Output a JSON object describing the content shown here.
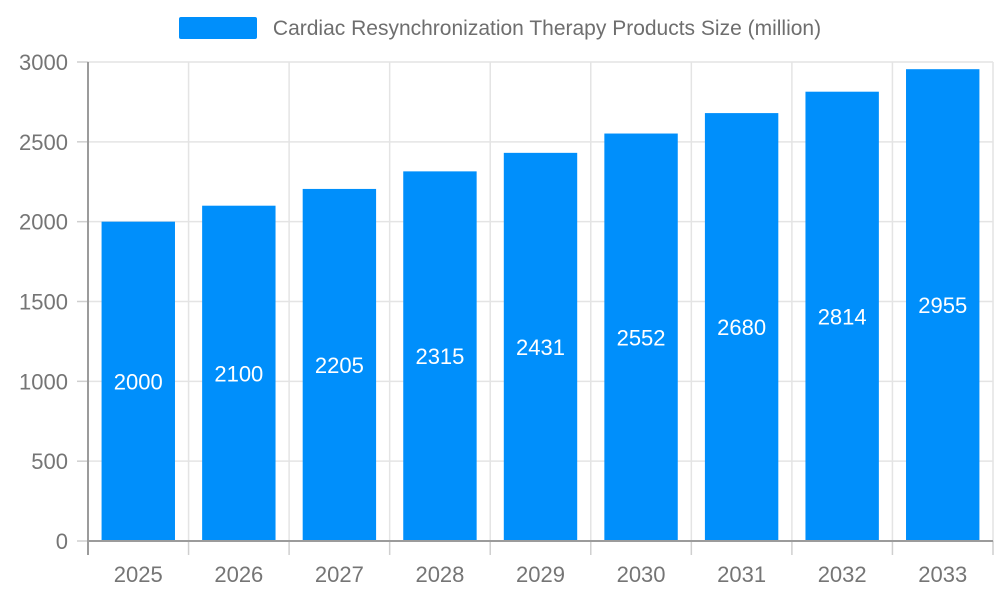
{
  "chart_data": {
    "type": "bar",
    "categories": [
      "2025",
      "2026",
      "2027",
      "2028",
      "2029",
      "2030",
      "2031",
      "2032",
      "2033"
    ],
    "series": [
      {
        "name": "Cardiac Resynchronization Therapy Products Size (million)",
        "values": [
          2000,
          2100,
          2205,
          2315,
          2431,
          2552,
          2680,
          2814,
          2955
        ]
      }
    ],
    "title": "",
    "xlabel": "",
    "ylabel": "",
    "ylim": [
      0,
      3000
    ],
    "yticks": [
      0,
      500,
      1000,
      1500,
      2000,
      2500,
      3000
    ],
    "grid": true,
    "legend_position": "top",
    "value_labels": true,
    "colors": {
      "bar": "#008FFB",
      "value_label": "#ffffff",
      "axis_label": "#757575",
      "legend_text": "#6e6e6e",
      "gridline": "#e4e4e4",
      "axis_line": "#9b9b9b",
      "tick": "#cfcfcf",
      "background": "#ffffff"
    }
  }
}
